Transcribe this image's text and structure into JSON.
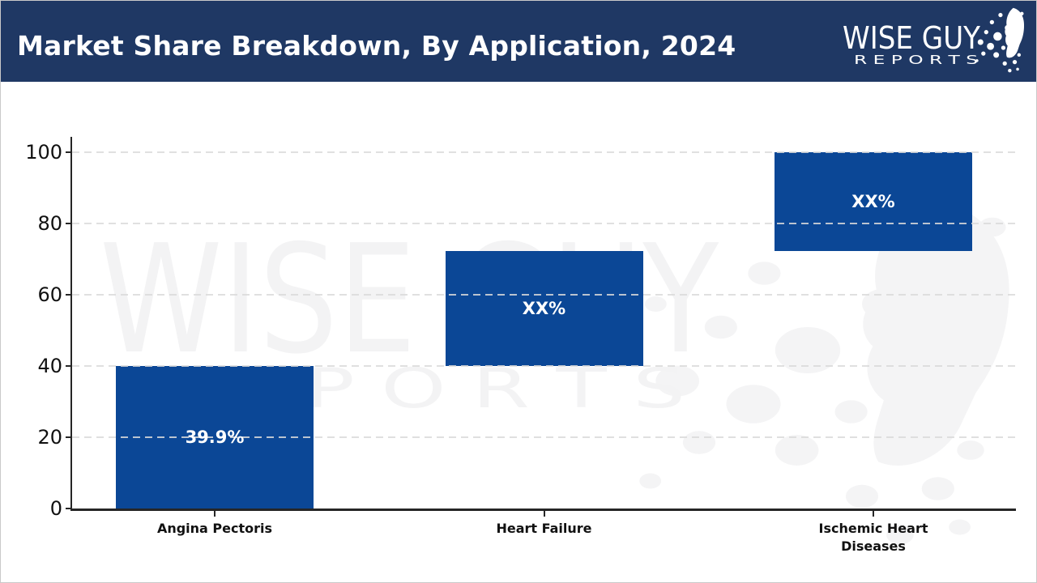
{
  "header": {
    "title": "Market Share Breakdown, By Application, 2024",
    "logo": {
      "line1": "WISE GUY",
      "line2": "R E P O R T S"
    }
  },
  "watermark": {
    "line1": "WISE GUY",
    "line2": "R E P O R T S"
  },
  "chart_data": {
    "type": "bar",
    "subtype": "waterfall",
    "title": "Market Share Breakdown, By Application, 2024",
    "categories": [
      "Angina Pectoris",
      "Heart Failure",
      "Ischemic Heart Diseases"
    ],
    "segments": [
      {
        "category": "Angina Pectoris",
        "start": 0,
        "end": 40,
        "value": 39.9,
        "label": "39.9%"
      },
      {
        "category": "Heart Failure",
        "start": 40,
        "end": 72.3,
        "value": null,
        "label": "XX%"
      },
      {
        "category": "Ischemic Heart Diseases",
        "start": 72.3,
        "end": 100,
        "value": null,
        "label": "XX%"
      }
    ],
    "yticks": [
      0,
      20,
      40,
      60,
      80,
      100
    ],
    "ylim": [
      0,
      104
    ],
    "xlabel": "",
    "ylabel": "",
    "grid": true,
    "grid_style": "dashed",
    "legend": false,
    "bar_color": "#0b4796",
    "bar_label_color": "#ffffff"
  },
  "colors": {
    "header_bg": "#1f3864",
    "bar": "#0b4796",
    "axis": "#262626",
    "gridline": "#dadada",
    "watermark": "#f3f3f4",
    "page_border": "#c9c9c9",
    "title_text": "#ffffff"
  }
}
